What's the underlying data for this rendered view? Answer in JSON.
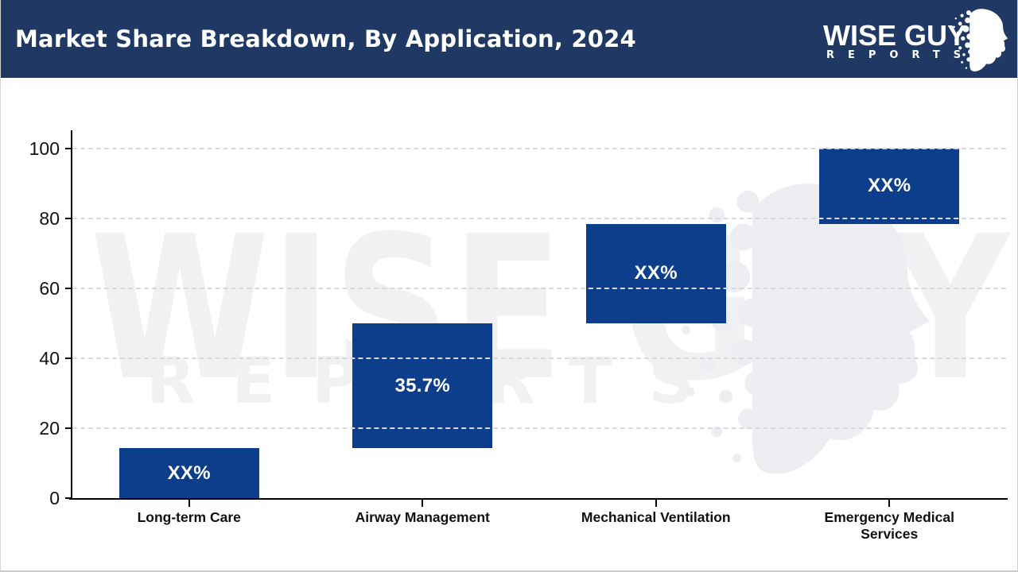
{
  "header": {
    "title": "Market Share Breakdown, By Application, 2024",
    "logo": {
      "name": "WISE GUY",
      "sub": "REPORTS"
    }
  },
  "watermark": {
    "big": "WISE GUY",
    "sub": "REPORTS"
  },
  "chart_data": {
    "type": "bar",
    "subtype": "waterfall-floating-bars",
    "title": "Market Share Breakdown, By Application, 2024",
    "xlabel": "",
    "ylabel": "",
    "ylim": [
      0,
      100
    ],
    "yticks": [
      0,
      20,
      40,
      60,
      80,
      100
    ],
    "grid": "horizontal-dashed",
    "legend": "none",
    "categories": [
      "Long-term Care",
      "Airway Management",
      "Mechanical Ventilation",
      "Emergency Medical Services"
    ],
    "series": [
      {
        "name": "Market Share (%)",
        "segments": [
          {
            "category": "Long-term Care",
            "start": 0,
            "end": 14.3,
            "label": "XX%"
          },
          {
            "category": "Airway Management",
            "start": 14.3,
            "end": 50,
            "label": "35.7%"
          },
          {
            "category": "Mechanical Ventilation",
            "start": 50,
            "end": 78.5,
            "label": "XX%"
          },
          {
            "category": "Emergency Medical Services",
            "start": 78.5,
            "end": 100,
            "label": "XX%"
          }
        ]
      }
    ],
    "colors": {
      "bar": "#0d3e8c",
      "grid": "#d9d9d9",
      "axis": "#000000",
      "bar_label": "#ffffff"
    }
  },
  "colors": {
    "header_bg": "#1f3864",
    "page_bg": "#ffffff",
    "watermark": "#f1f1f4"
  }
}
